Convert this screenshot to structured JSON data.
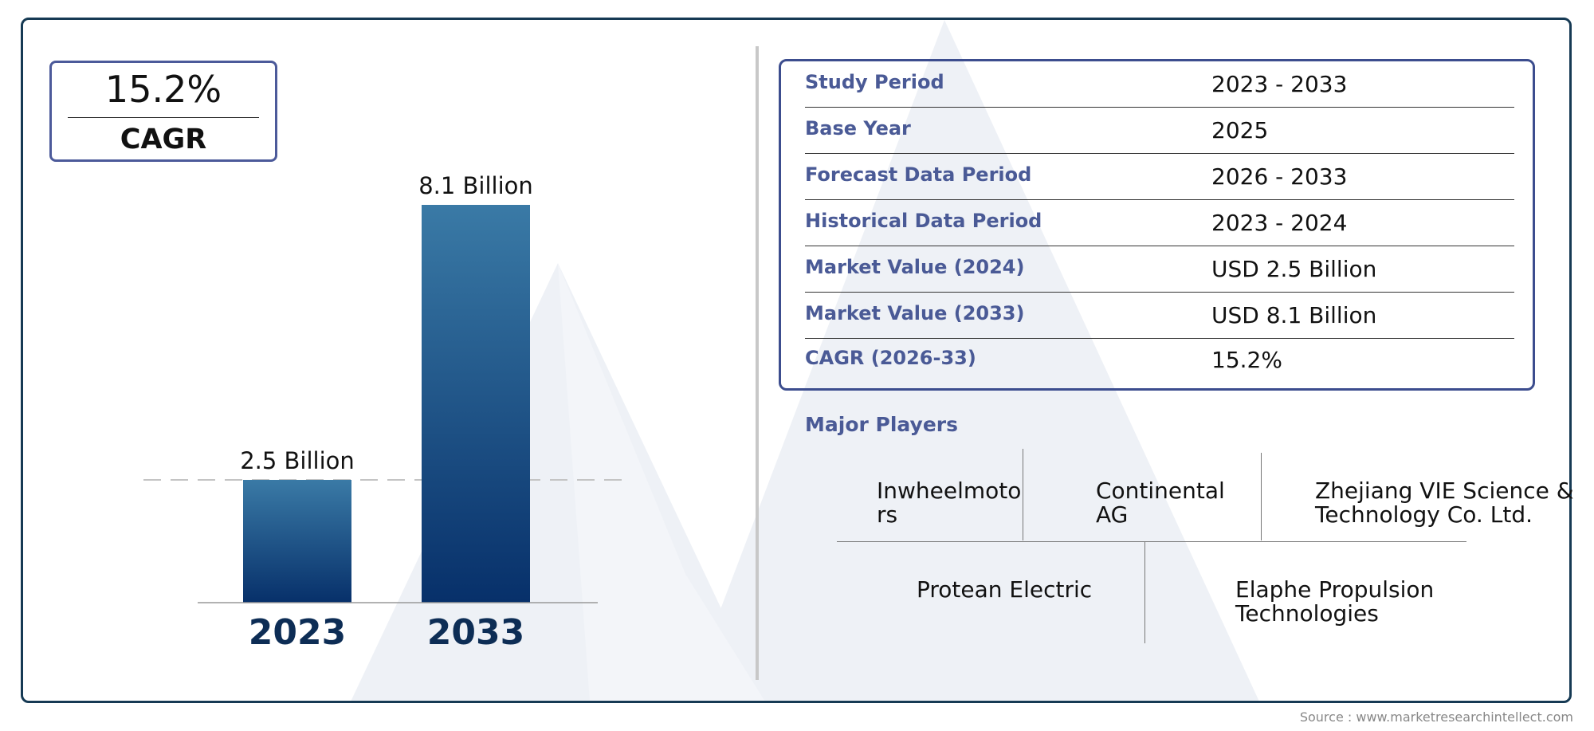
{
  "header": {
    "cagr_value": "15.2%",
    "cagr_label": "CAGR"
  },
  "chart_data": {
    "type": "bar",
    "categories": [
      "2023",
      "2033"
    ],
    "values": [
      2.5,
      8.1
    ],
    "data_labels": [
      "2.5 Billion",
      "8.1 Billion"
    ],
    "title": "",
    "xlabel": "",
    "ylabel": "",
    "ylim": [
      0,
      8.1
    ],
    "grid": false,
    "reference_line_at": 2.5,
    "colors": {
      "bar_top": "#3a7aa6",
      "bar_bottom": "#07306a",
      "tick_label": "#0d2d55"
    }
  },
  "summary": {
    "rows": [
      {
        "label": "Study Period",
        "value": "2023 - 2033"
      },
      {
        "label": "Base Year",
        "value": "2025"
      },
      {
        "label": "Forecast Data Period",
        "value": "2026 - 2033"
      },
      {
        "label": "Historical Data Period",
        "value": "2023 - 2024"
      },
      {
        "label": "Market Value (2024)",
        "value": "USD 2.5 Billion"
      },
      {
        "label": "Market Value (2033)",
        "value": "USD 8.1 Billion"
      },
      {
        "label": "CAGR (2026-33)",
        "value": "15.2%"
      }
    ]
  },
  "players": {
    "title": "Major Players",
    "items": [
      {
        "line1": "Inwheelmoto",
        "line2": "rs"
      },
      {
        "line1": "Continental",
        "line2": "AG"
      },
      {
        "line1": "Zhejiang VIE Science &",
        "line2": "Technology Co. Ltd."
      },
      {
        "line1": "Protean Electric",
        "line2": ""
      },
      {
        "line1": "Elaphe Propulsion",
        "line2": "Technologies"
      }
    ]
  },
  "footer": {
    "source": "Source : www.marketresearchintellect.com"
  },
  "colors": {
    "frame": "#163a54",
    "accent_label": "#4a5a96",
    "box_border": "#3c4d8e"
  }
}
